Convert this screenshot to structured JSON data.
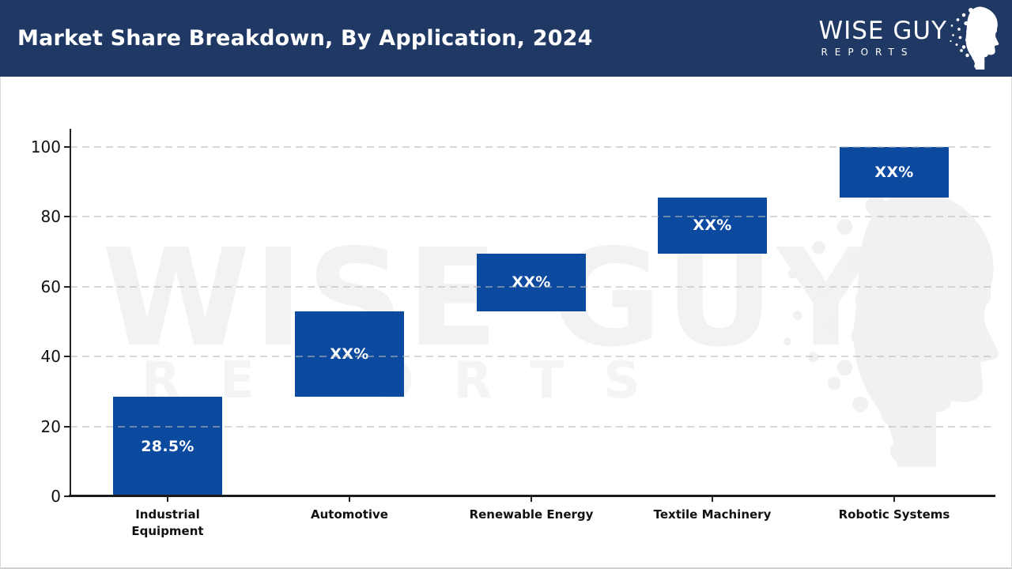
{
  "header": {
    "title": "Market Share Breakdown, By Application, 2024",
    "bg_color": "#203864",
    "logo": {
      "main": "WISE GUY",
      "sub": "REPORTS"
    }
  },
  "watermark": {
    "line1": "WISE GUY",
    "line2": "REPORTS"
  },
  "chart_data": {
    "type": "bar",
    "subtype": "waterfall",
    "title": "Market Share Breakdown, By Application, 2024",
    "categories": [
      "Industrial Equipment",
      "Automotive",
      "Renewable Energy",
      "Textile Machinery",
      "Robotic Systems"
    ],
    "categories_display": [
      "Industrial\nEquipment",
      "Automotive",
      "Renewable Energy",
      "Textile Machinery",
      "Robotic Systems"
    ],
    "bars": [
      {
        "category": "Industrial Equipment",
        "label": "28.5%",
        "start": 0,
        "end": 28.5
      },
      {
        "category": "Automotive",
        "label": "XX%",
        "start": 28.5,
        "end": 53
      },
      {
        "category": "Renewable Energy",
        "label": "XX%",
        "start": 53,
        "end": 69.5
      },
      {
        "category": "Textile Machinery",
        "label": "XX%",
        "start": 69.5,
        "end": 85.5
      },
      {
        "category": "Robotic Systems",
        "label": "XX%",
        "start": 85.5,
        "end": 100
      }
    ],
    "ylim": [
      0,
      100
    ],
    "yticks": [
      0,
      20,
      40,
      60,
      80,
      100
    ],
    "grid": "horizontal-dashed",
    "legend": null,
    "bar_color": "#0c4aa0",
    "bar_label_color": "#ffffff"
  }
}
